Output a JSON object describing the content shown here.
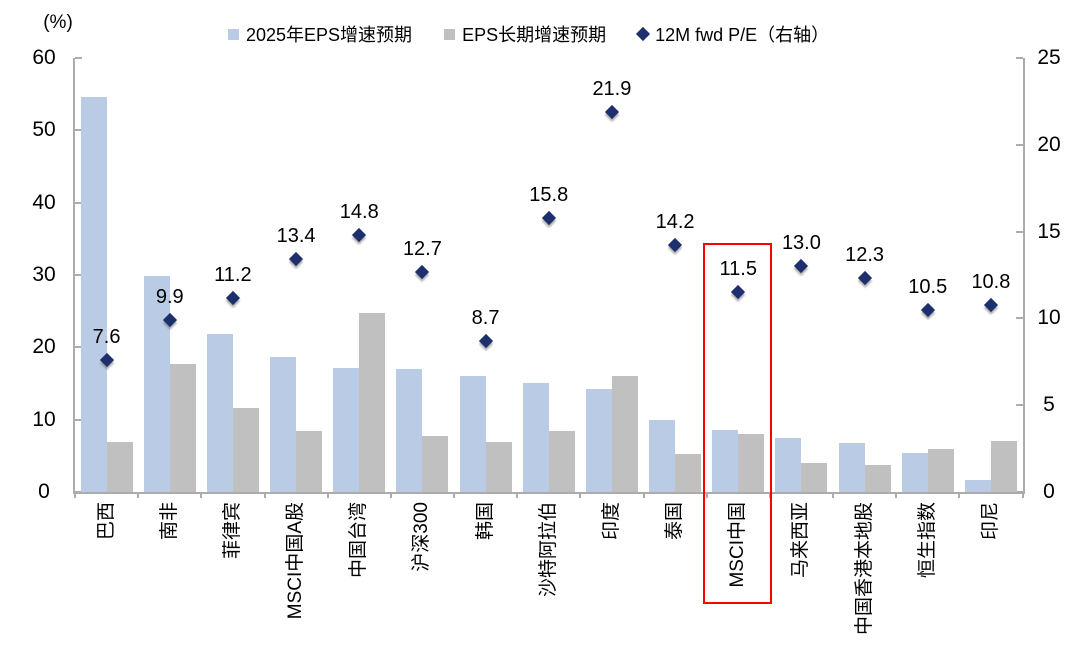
{
  "chart": {
    "percent_axis_label": "(%)"
  },
  "chart_data": {
    "type": "bar",
    "subtype": "combo-clustered-bars-with-scatter-markers",
    "title": "",
    "categories": [
      "巴西",
      "南非",
      "菲律宾",
      "MSCI中国A股",
      "中国台湾",
      "沪深300",
      "韩国",
      "沙特阿拉伯",
      "印度",
      "泰国",
      "MSCI中国",
      "马来西亚",
      "中国香港本地股",
      "恒生指数",
      "印尼"
    ],
    "series": [
      {
        "name": "2025年EPS增速预期",
        "type": "bar",
        "axis": "left",
        "marker": "square",
        "color": "#BACCE5",
        "values": [
          54.6,
          29.8,
          21.8,
          18.6,
          17.2,
          17.0,
          16.0,
          15.1,
          14.3,
          9.9,
          8.6,
          7.5,
          6.8,
          5.4,
          1.6
        ]
      },
      {
        "name": "EPS长期增速预期",
        "type": "bar",
        "axis": "left",
        "marker": "square",
        "color": "#C0C0C0",
        "values": [
          6.9,
          17.7,
          11.6,
          8.4,
          24.8,
          7.7,
          6.9,
          8.4,
          16.0,
          5.3,
          8.0,
          4.0,
          3.7,
          6.0,
          7.1
        ]
      },
      {
        "name": "12M fwd P/E（右轴）",
        "type": "scatter",
        "axis": "right",
        "marker": "diamond",
        "color": "#1E2F6D",
        "values": [
          7.6,
          9.9,
          11.2,
          13.4,
          14.8,
          12.7,
          8.7,
          15.8,
          21.9,
          14.2,
          11.5,
          13.0,
          12.3,
          10.5,
          10.8
        ],
        "data_labels_shown": true
      }
    ],
    "left_axis": {
      "unit_label": "(%)",
      "min": 0,
      "max": 60,
      "ticks": [
        0,
        10,
        20,
        30,
        40,
        50,
        60
      ]
    },
    "right_axis": {
      "min": 0,
      "max": 25,
      "ticks": [
        0,
        5,
        10,
        15,
        20,
        25
      ]
    },
    "highlight": {
      "category": "MSCI中国",
      "box_color": "#FE0000"
    },
    "grid": false,
    "legend_position": "top"
  }
}
